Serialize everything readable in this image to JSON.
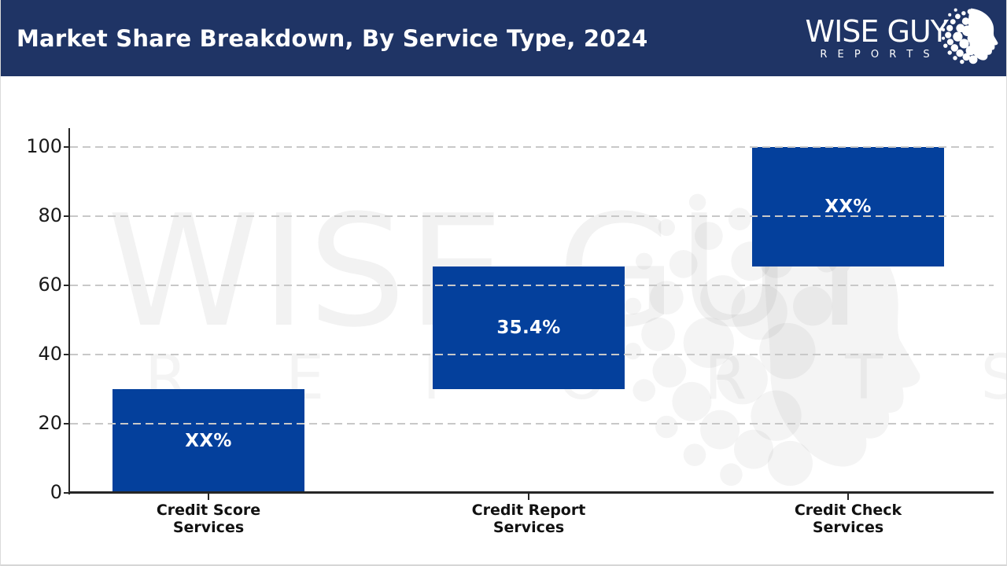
{
  "header": {
    "title": "Market Share Breakdown, By Service Type, 2024",
    "bg_color": "#1f3465",
    "logo": {
      "line1": "WISE GUY",
      "line2": "R E P O R T S"
    }
  },
  "watermark": {
    "line1": "WISE GUY",
    "line2": "R E P O R T S"
  },
  "chart_data": {
    "type": "bar",
    "variant": "floating-range",
    "title": "Market Share Breakdown, By Service Type, 2024",
    "categories": [
      "Credit Score Services",
      "Credit Report Services",
      "Credit Check Services"
    ],
    "bars": [
      {
        "label_lines": [
          "Credit Score",
          "Services"
        ],
        "range": [
          0,
          30
        ],
        "value_label": "XX%"
      },
      {
        "label_lines": [
          "Credit Report",
          "Services"
        ],
        "range": [
          30,
          65.4
        ],
        "value_label": "35.4%"
      },
      {
        "label_lines": [
          "Credit Check",
          "Services"
        ],
        "range": [
          65.4,
          100
        ],
        "value_label": "XX%"
      }
    ],
    "yticks": [
      0,
      20,
      40,
      60,
      80,
      100
    ],
    "ylim": [
      0,
      105
    ],
    "xlabel": "",
    "ylabel": "",
    "grid": {
      "horizontal": true,
      "style": "dashed"
    },
    "legend": "none",
    "colors": {
      "bar": "#04409c",
      "bar_label": "#ffffff",
      "grid": "#c8c8c8",
      "axis": "#262626",
      "tick_label": "#1a1a1a",
      "category_label": "#111111"
    }
  }
}
